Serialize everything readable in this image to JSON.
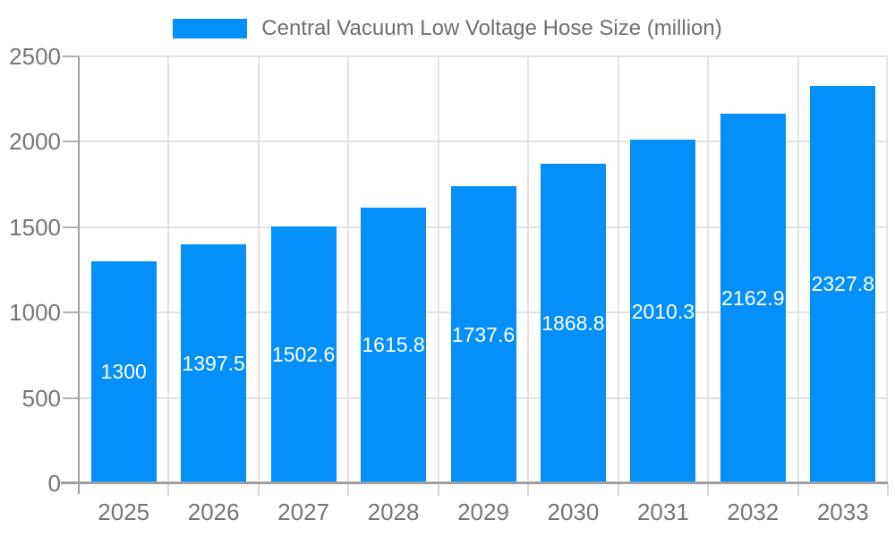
{
  "chart_data": {
    "type": "bar",
    "title": "Central Vacuum Low Voltage Hose Size (million)",
    "categories": [
      "2025",
      "2026",
      "2027",
      "2028",
      "2029",
      "2030",
      "2031",
      "2032",
      "2033"
    ],
    "values": [
      1300,
      1397.5,
      1502.6,
      1615.8,
      1737.6,
      1868.8,
      2010.3,
      2162.9,
      2327.8
    ],
    "value_labels": [
      "1300",
      "1397.5",
      "1502.6",
      "1615.8",
      "1737.6",
      "1868.8",
      "2010.3",
      "2162.9",
      "2327.8"
    ],
    "xlabel": "",
    "ylabel": "",
    "ylim": [
      0,
      2500
    ],
    "yticks": [
      0,
      500,
      1000,
      1500,
      2000,
      2500
    ],
    "grid": true,
    "legend_position": "top",
    "colors": {
      "bar": "#0490f8",
      "grid": "#e3e3e3",
      "axis": "#9e9e9e",
      "y_tick_mark": "#b0b0b0",
      "x_tick_mark": "#d6d6d6",
      "tick_label": "#757575",
      "legend_text": "#6e6e6e",
      "value_label": "#ffffff",
      "background": "#ffffff"
    }
  }
}
